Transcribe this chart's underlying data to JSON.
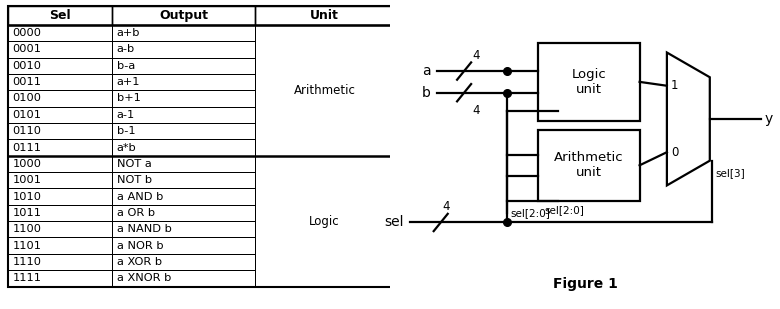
{
  "table": {
    "sel_col": [
      "0000",
      "0001",
      "0010",
      "0011",
      "0100",
      "0101",
      "0110",
      "0111",
      "1000",
      "1001",
      "1010",
      "1011",
      "1100",
      "1101",
      "1110",
      "1111"
    ],
    "output_col": [
      "a+b",
      "a-b",
      "b-a",
      "a+1",
      "b+1",
      "a-1",
      "b-1",
      "a*b",
      "NOT a",
      "NOT b",
      "a AND b",
      "a OR b",
      "a NAND b",
      "a NOR b",
      "a XOR b",
      "a XNOR b"
    ],
    "unit_col_arithmetic": "Arithmetic",
    "unit_col_logic": "Logic",
    "col_headers": [
      "Sel",
      "Output",
      "Unit"
    ],
    "text_color": "#4d4d4d",
    "header_text_color": "#000000",
    "body_text_color": "#000000",
    "border_color": "#000000"
  },
  "diagram": {
    "fig_caption": "Figure 1",
    "line_color": "#000000",
    "text_color": "#000000",
    "label_logic_unit": "Logic\nunit",
    "label_arith_unit": "Arithmetic\nunit",
    "label_sel20_top": "sel[2:0]",
    "label_sel20_bot": "sel[2:0]",
    "label_sel3": "sel[3]",
    "label_mux_1": "1",
    "label_mux_0": "0"
  }
}
